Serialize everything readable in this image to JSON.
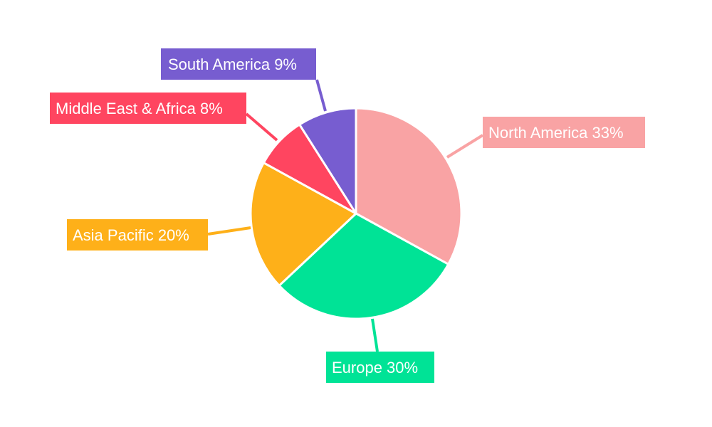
{
  "chart_data": {
    "type": "pie",
    "title": "",
    "categories": [
      "North America",
      "Europe",
      "Asia Pacific",
      "Middle East & Africa",
      "South America"
    ],
    "values": [
      33,
      30,
      20,
      8,
      9
    ],
    "labels": [
      "North America 33%",
      "Europe 30%",
      "Asia Pacific 20%",
      "Middle East & Africa 8%",
      "South America 9%"
    ],
    "colors": [
      "#f9a3a4",
      "#00e396",
      "#feb019",
      "#ff4560",
      "#775dd0"
    ],
    "start_angle": "12 o'clock",
    "direction": "clockwise",
    "legend": "none"
  }
}
